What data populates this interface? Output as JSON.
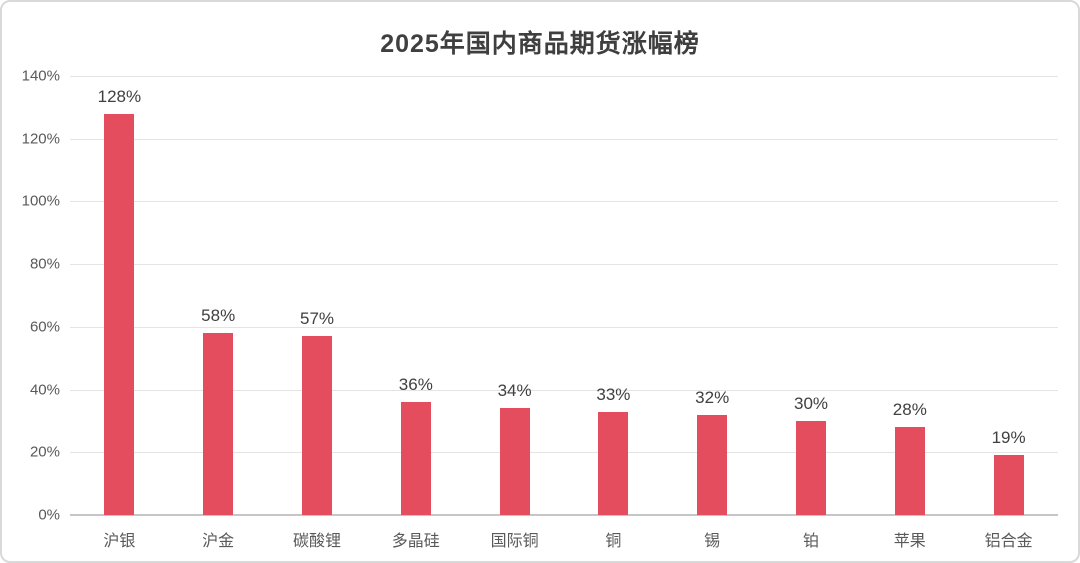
{
  "chart_data": {
    "type": "bar",
    "title": "2025年国内商品期货涨幅榜",
    "categories": [
      "沪银",
      "沪金",
      "碳酸锂",
      "多晶硅",
      "国际铜",
      "铜",
      "锡",
      "铂",
      "苹果",
      "铝合金"
    ],
    "values": [
      128,
      58,
      57,
      36,
      34,
      33,
      32,
      30,
      28,
      19
    ],
    "value_labels": [
      "128%",
      "58%",
      "57%",
      "36%",
      "34%",
      "33%",
      "32%",
      "30%",
      "28%",
      "19%"
    ],
    "xlabel": "",
    "ylabel": "",
    "ylim": [
      0,
      140
    ],
    "ytick_step": 20,
    "ytick_labels": [
      "0%",
      "20%",
      "40%",
      "60%",
      "80%",
      "100%",
      "120%",
      "140%"
    ],
    "grid": "horizontal",
    "legend": "none",
    "colors": {
      "bar": "#e44d5d",
      "title": "#3f3f3f",
      "tick_label": "#595959",
      "value_label": "#404040",
      "gridline": "#e4e4e4",
      "axis_line": "#c6c6c6",
      "card_border": "#d9d9d9",
      "background": "#ffffff"
    }
  }
}
